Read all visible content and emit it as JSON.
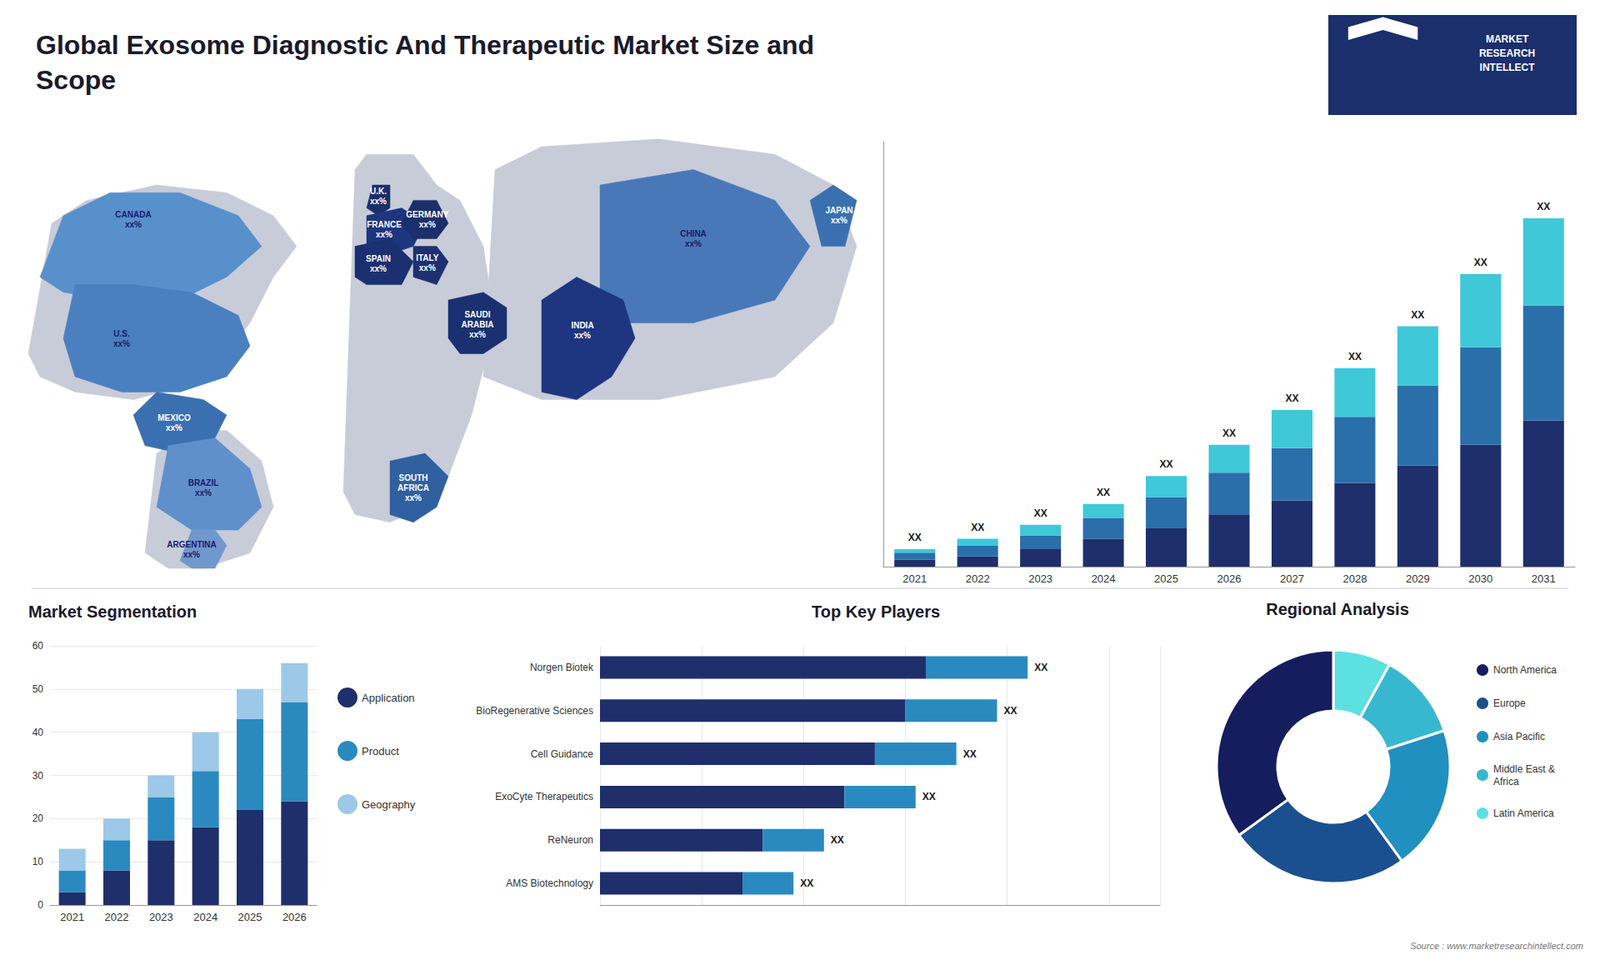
{
  "chart_data": [
    {
      "type": "map",
      "categories": [
        "CANADA",
        "U.S.",
        "MEXICO",
        "BRAZIL",
        "ARGENTINA",
        "U.K.",
        "FRANCE",
        "SPAIN",
        "GERMANY",
        "ITALY",
        "SAUDI\nARABIA",
        "SOUTH\nAFRICA",
        "CHINA",
        "JAPAN",
        "INDIA"
      ],
      "colors": [
        "#5890cc",
        "#4a80c0",
        "#3a70b0",
        "#6090cc",
        "#7098cc",
        "#1a2f6b",
        "#1e3580",
        "#1a3070",
        "#1a2f6b",
        "#1e3070",
        "#1a3070",
        "#3060a0",
        "#4878b8",
        "#3a70b0",
        "#1e3580"
      ],
      "color": "#c8ccd8",
      "annotations": [
        "xx%",
        "xx%",
        "xx%",
        "xx%",
        "xx%",
        "xx%",
        "xx%",
        "xx%",
        "xx%",
        "xx%",
        "xx%",
        "xx%",
        "xx%",
        "xx%",
        "xx%"
      ]
    },
    {
      "type": "bar",
      "title": "Global Exosome Diagnostic And Therapeutic Market Size and\nScope",
      "subtitle": "MARKET\nRESEARCH\nINTELLECT",
      "categories": [
        "2021",
        "2022",
        "2023",
        "2024",
        "2025",
        "2026",
        "2027",
        "2028",
        "2029",
        "2030",
        "2031"
      ],
      "stacked": true,
      "series": [
        {
          "color": "#1e2f6b",
          "values": [
            2,
            3,
            5,
            8,
            11,
            15,
            19,
            24,
            29,
            35,
            42
          ]
        },
        {
          "color": "#2a6eaa",
          "values": [
            2,
            3,
            4,
            6,
            9,
            12,
            15,
            19,
            23,
            28,
            33
          ]
        },
        {
          "color": "#3ec8d8",
          "values": [
            1,
            2,
            3,
            4,
            6,
            8,
            11,
            14,
            17,
            21,
            25
          ]
        }
      ],
      "ylim": [
        0,
        122
      ],
      "tick_labels": "x",
      "grid": false,
      "annotations": [
        "XX",
        "XX",
        "XX",
        "XX",
        "XX",
        "XX",
        "XX",
        "XX",
        "XX",
        "XX",
        "XX"
      ]
    },
    {
      "type": "bar",
      "title": "Market Segmentation",
      "categories": [
        "2021",
        "2022",
        "2023",
        "2024",
        "2025",
        "2026"
      ],
      "stacked": true,
      "series": [
        {
          "name": "Application",
          "color": "#1e2f6b",
          "values": [
            3,
            8,
            15,
            18,
            22,
            24
          ]
        },
        {
          "name": "Product",
          "color": "#2a8abf",
          "values": [
            5,
            7,
            10,
            13,
            21,
            23
          ]
        },
        {
          "name": "Geography",
          "color": "#9dc8e8",
          "values": [
            5,
            5,
            5,
            9,
            7,
            9
          ]
        }
      ],
      "ylim": [
        0,
        60
      ],
      "yticks": [
        0,
        10,
        20,
        30,
        40,
        50,
        60
      ],
      "grid": true,
      "legend": "right"
    },
    {
      "type": "bar",
      "title": "Top Key Players",
      "orientation": "horizontal",
      "stacked": true,
      "categories": [
        "Norgen Biotek",
        "BioRegenerative Sciences",
        "Cell Guidance",
        "ExoCyte Therapeutics",
        "ReNeuron",
        "AMS Biotechnology"
      ],
      "series": [
        {
          "color": "#1e2f6b",
          "values": [
            32,
            30,
            27,
            24,
            16,
            14
          ]
        },
        {
          "color": "#2a8abf",
          "values": [
            10,
            9,
            8,
            7,
            6,
            5
          ]
        }
      ],
      "xlim": [
        0,
        55
      ],
      "xticks": [
        0,
        10,
        20,
        30,
        40,
        50
      ],
      "grid": true,
      "tick_labels": "y",
      "annotations": [
        "XX",
        "XX",
        "XX",
        "XX",
        "XX",
        "XX"
      ]
    },
    {
      "type": "pie",
      "title": "Regional Analysis",
      "categories": [
        "Latin America",
        "Middle East &\nAfrica",
        "Asia Pacific",
        "Europe",
        "North America"
      ],
      "values": [
        8,
        12,
        20,
        25,
        35
      ],
      "colors": [
        "#5de0e0",
        "#38b8d0",
        "#2090c0",
        "#1a5090",
        "#151d5f"
      ],
      "legend": "right",
      "annotations": [
        "Source : www.marketresearchintellect.com"
      ]
    }
  ]
}
